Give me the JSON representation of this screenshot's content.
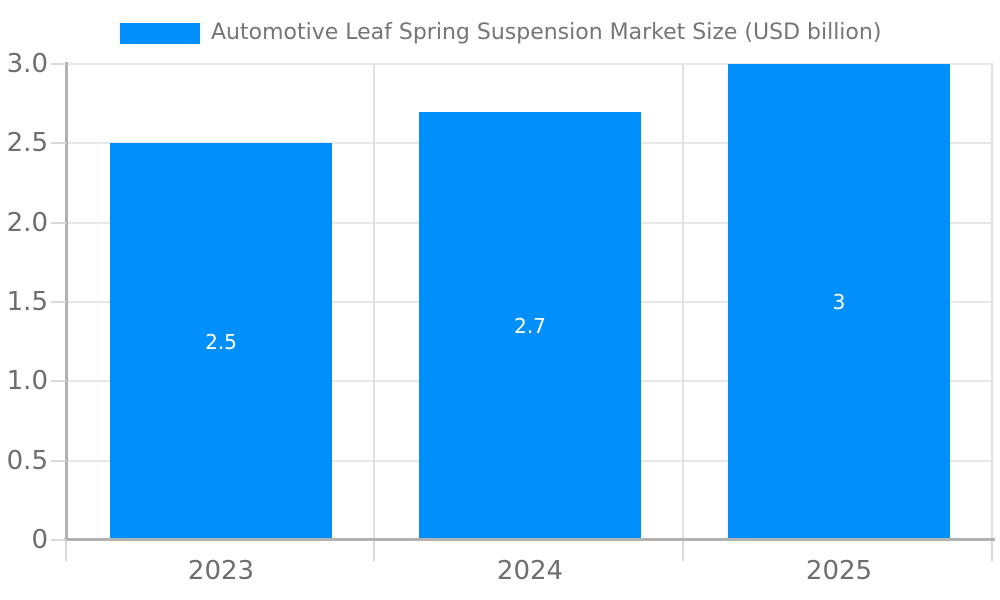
{
  "chart_data": {
    "type": "bar",
    "title": "Automotive Leaf Spring Suspension Market Size (USD billion)",
    "categories": [
      "2023",
      "2024",
      "2025"
    ],
    "values": [
      2.5,
      2.7,
      3
    ],
    "value_labels": [
      "2.5",
      "2.7",
      "3"
    ],
    "xlabel": "",
    "ylabel": "",
    "ylim": [
      0,
      3
    ],
    "yticks": [
      {
        "value": 0,
        "label": "0"
      },
      {
        "value": 0.5,
        "label": "0.5"
      },
      {
        "value": 1,
        "label": "1.0"
      },
      {
        "value": 1.5,
        "label": "1.5"
      },
      {
        "value": 2,
        "label": "2.0"
      },
      {
        "value": 2.5,
        "label": "2.5"
      },
      {
        "value": 3,
        "label": "3.0"
      }
    ],
    "grid": "horizontal gridlines at 0.5 intervals plus vertical category separators",
    "legend_position": "top-center",
    "legend_entries": [
      "Automotive Leaf Spring Suspension Market Size (USD billion)"
    ],
    "colors": {
      "bar": "#008ffb",
      "value_label": "#ffffff",
      "background": "#ffffff",
      "axis_line": "#b2b2b2",
      "gridline": "#e8e8e8",
      "separator": "#e2e2e2",
      "tick_mark": "#d9d9d9",
      "tick_label_text": "#6e6e6e",
      "legend_text": "#767676"
    }
  }
}
